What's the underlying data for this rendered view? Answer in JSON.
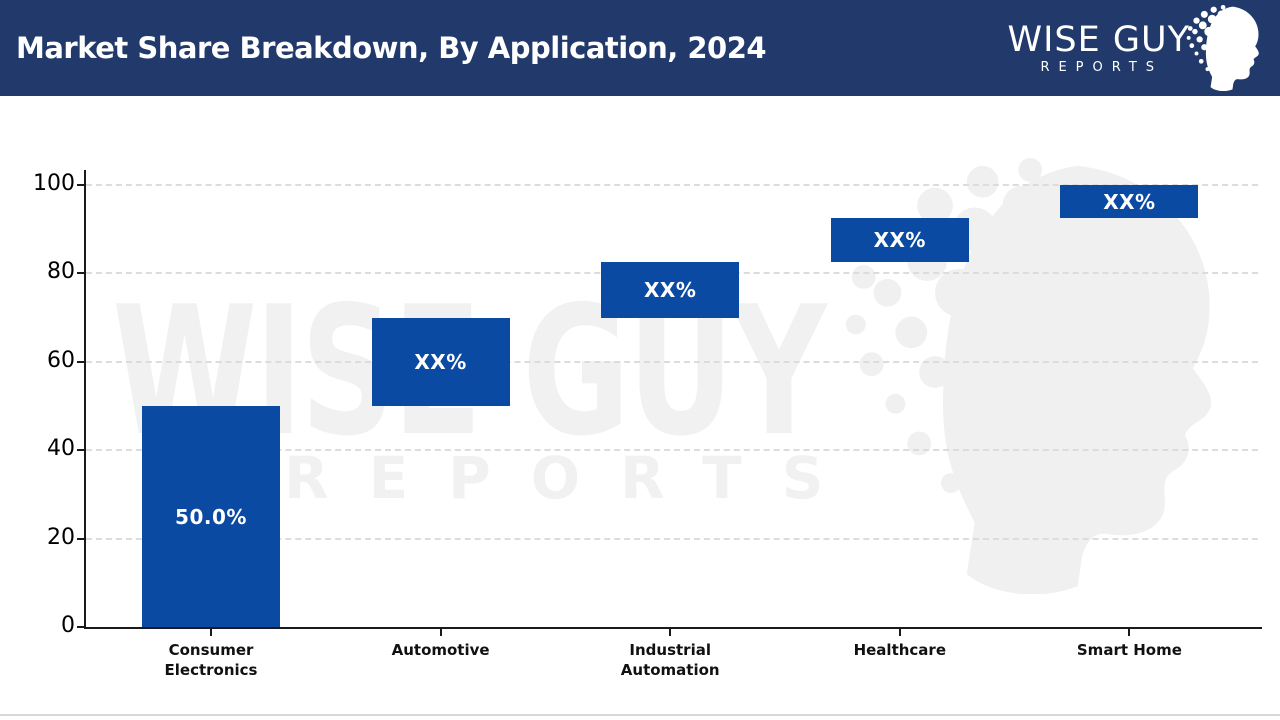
{
  "header": {
    "title": "Market Share Breakdown, By Application, 2024",
    "logo": {
      "line1": "WISE GUY",
      "line2": "REPORTS"
    }
  },
  "watermark": {
    "line1": "WISE GUY",
    "line2": "REPORTS"
  },
  "colors": {
    "header_bg": "#223a6b",
    "bar": "#0b4aa2",
    "bar_label": "#ffffff",
    "grid": "#dcdcdc",
    "axis": "#1a1a1a",
    "watermark": "#f0f0f1"
  },
  "chart_data": {
    "type": "bar",
    "subtype": "waterfall",
    "title": "Market Share Breakdown, By Application, 2024",
    "categories": [
      "Consumer\nElectronics",
      "Automotive",
      "Industrial\nAutomation",
      "Healthcare",
      "Smart Home"
    ],
    "segments": [
      {
        "category": "Consumer Electronics",
        "start": 0,
        "end": 50,
        "value": 50,
        "label": "50.0%"
      },
      {
        "category": "Automotive",
        "start": 50,
        "end": 70,
        "value": 20,
        "label": "XX%"
      },
      {
        "category": "Industrial Automation",
        "start": 70,
        "end": 82.5,
        "value": 12.5,
        "label": "XX%"
      },
      {
        "category": "Healthcare",
        "start": 82.5,
        "end": 92.5,
        "value": 10,
        "label": "XX%"
      },
      {
        "category": "Smart Home",
        "start": 92.5,
        "end": 100,
        "value": 7.5,
        "label": "XX%"
      }
    ],
    "xlabel": "",
    "ylabel": "",
    "yticks": [
      0,
      20,
      40,
      60,
      80,
      100
    ],
    "ylim": [
      0,
      103.5
    ],
    "grid": "horizontal-dashed",
    "legend": "none"
  }
}
